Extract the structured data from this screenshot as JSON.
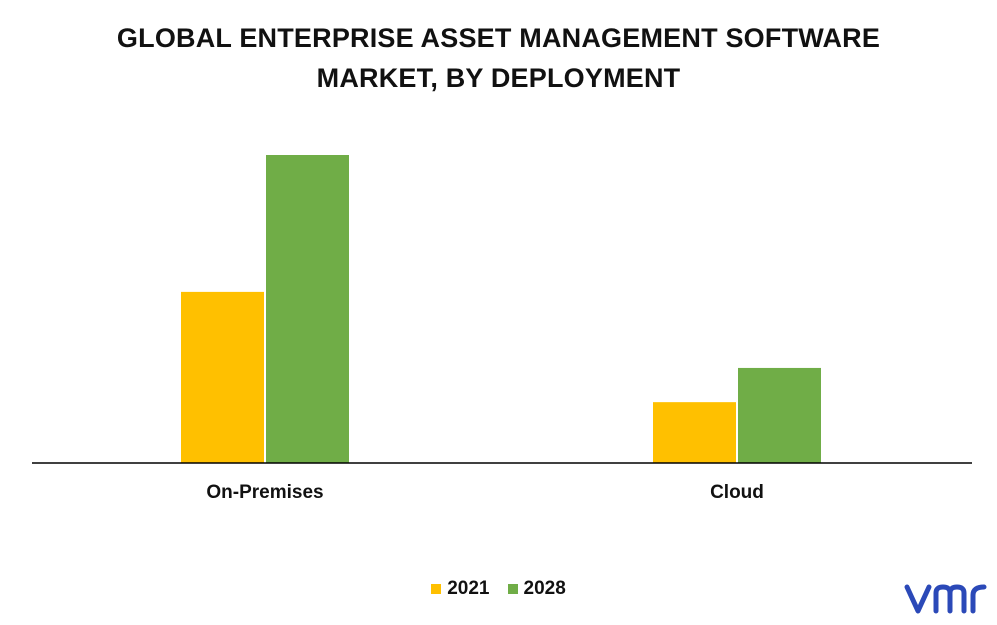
{
  "chart_data": {
    "type": "bar",
    "title_lines": [
      "GLOBAL ENTERPRISE ASSET MANAGEMENT SOFTWARE",
      "MARKET, BY DEPLOYMENT"
    ],
    "categories": [
      "On-Premises",
      "Cloud"
    ],
    "series": [
      {
        "name": "2021",
        "color": "#FFC000",
        "values": [
          4.5,
          1.6
        ]
      },
      {
        "name": "2028",
        "color": "#70AD47",
        "values": [
          8.1,
          2.5
        ]
      }
    ],
    "ylim": [
      0,
      9
    ],
    "grid": false,
    "legend_position": "bottom",
    "xlabel": "",
    "ylabel": ""
  },
  "brand": {
    "logo_icon": "vmr-logo-icon",
    "logo_color": "#2B49B8"
  }
}
